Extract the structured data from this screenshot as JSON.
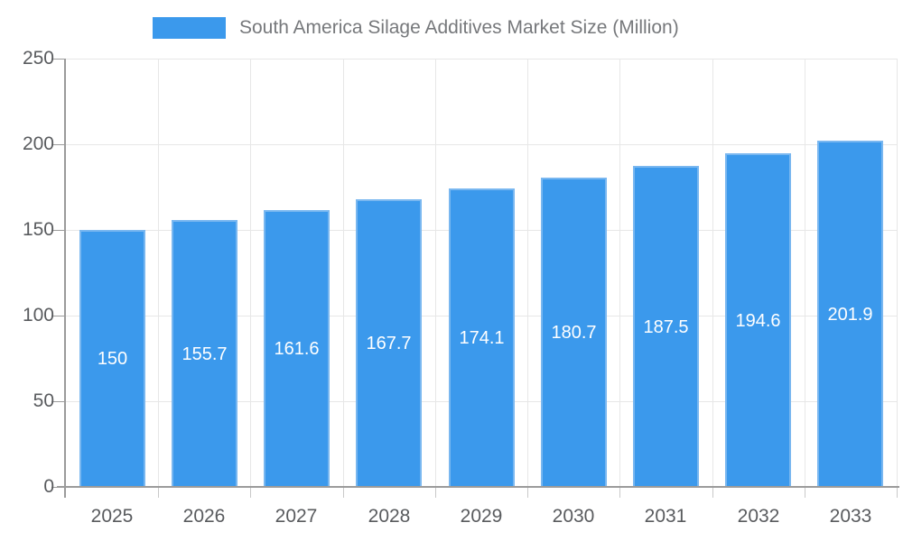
{
  "legend": {
    "label": "South America Silage Additives Market Size (Million)",
    "swatch_color": "#3b99ec"
  },
  "colors": {
    "bar_fill": "#3b99ec",
    "bar_border": "#79b7f0",
    "value_label": "#ffffff",
    "axis_line": "#9b9b9b",
    "grid_line": "#e7e7e7",
    "tick_label": "#595b5e",
    "legend_text": "#76787b"
  },
  "chart_data": {
    "type": "bar",
    "title": "South America Silage Additives Market Size (Million)",
    "categories": [
      "2025",
      "2026",
      "2027",
      "2028",
      "2029",
      "2030",
      "2031",
      "2032",
      "2033"
    ],
    "values": [
      150,
      155.7,
      161.6,
      167.7,
      174.1,
      180.7,
      187.5,
      194.6,
      201.9
    ],
    "series": [
      {
        "name": "South America Silage Additives Market Size (Million)",
        "values": [
          150,
          155.7,
          161.6,
          167.7,
          174.1,
          180.7,
          187.5,
          194.6,
          201.9
        ]
      }
    ],
    "xlabel": "",
    "ylabel": "",
    "ylim": [
      0,
      250
    ],
    "yticks": [
      0,
      50,
      100,
      150,
      200,
      250
    ],
    "grid": true,
    "legend_position": "top",
    "value_labels_inside_bars": true
  }
}
